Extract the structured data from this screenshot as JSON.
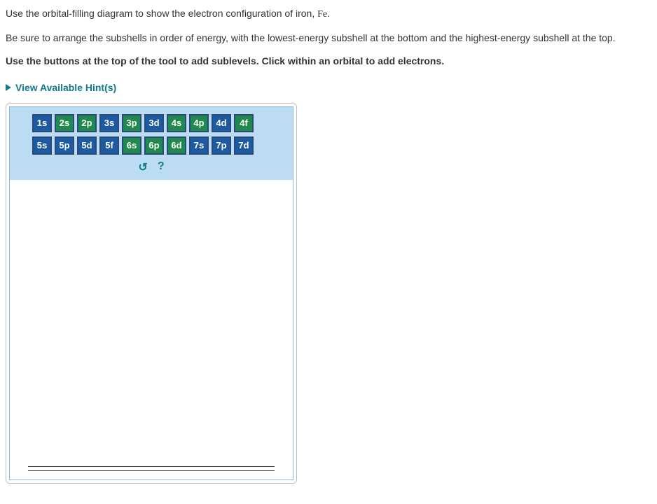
{
  "instructions": {
    "line1_pre": "Use the orbital-filling diagram to show the electron configuration of iron, ",
    "element": "Fe",
    "line1_post": ".",
    "line2": "Be sure to arrange the subshells in order of energy, with the lowest-energy subshell at the bottom and the highest-energy subshell at the top.",
    "line3": "Use the buttons at the top of the tool to add sublevels. Click within an orbital to add electrons."
  },
  "hints_label": "View Available Hint(s)",
  "sublevels_row1": [
    {
      "label": "1s",
      "color": "blue"
    },
    {
      "label": "2s",
      "color": "green"
    },
    {
      "label": "2p",
      "color": "green"
    },
    {
      "label": "3s",
      "color": "blue"
    },
    {
      "label": "3p",
      "color": "green"
    },
    {
      "label": "3d",
      "color": "blue"
    },
    {
      "label": "4s",
      "color": "green"
    },
    {
      "label": "4p",
      "color": "green"
    },
    {
      "label": "4d",
      "color": "blue"
    },
    {
      "label": "4f",
      "color": "green"
    }
  ],
  "sublevels_row2": [
    {
      "label": "5s",
      "color": "blue"
    },
    {
      "label": "5p",
      "color": "blue"
    },
    {
      "label": "5d",
      "color": "blue"
    },
    {
      "label": "5f",
      "color": "blue"
    },
    {
      "label": "6s",
      "color": "green"
    },
    {
      "label": "6p",
      "color": "green"
    },
    {
      "label": "6d",
      "color": "green"
    },
    {
      "label": "7s",
      "color": "blue"
    },
    {
      "label": "7p",
      "color": "blue"
    },
    {
      "label": "7d",
      "color": "blue"
    }
  ],
  "util": {
    "reset": "↺",
    "help": "?"
  },
  "colors": {
    "link": "#0e7a8a",
    "toolbar_bg": "#bcdcf4",
    "btn_blue": "#1e5aa0",
    "btn_green": "#1f8a4c",
    "btn_border": "#2a4a7a",
    "frame_border": "#bfbfbf",
    "inner_border": "#8fb7d6"
  }
}
